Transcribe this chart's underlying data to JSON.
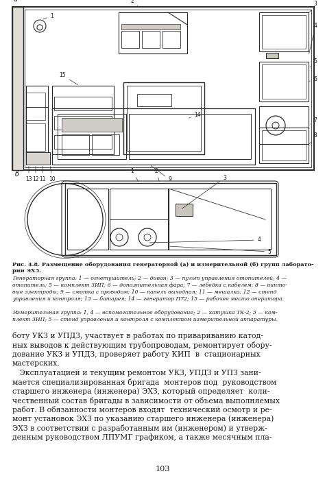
{
  "bg_color": "#ffffff",
  "page_color": "#f0ece4",
  "title_caption_bold": "Рис. 4.8. Размещение оборудования генераторной (а) и измерительной (б) групп лаборато-",
  "title_caption_bold2": "рии ЭХЗ.",
  "caption_gen": "Генераторная группа: 1 — огнетушитель; 2 — диван; 3 — пульт управления отопителей; 4 —\nотопитель; 5 — комплект ЗИП; 6 — дополнительная фара; 7 — лебедка с кабелем; 8 — винто-\nвые электроды; 9 — смотка с проводом; 10 — панель выходная; 11 — мешалка; 12 — стенд\nуправления и контроля; 13 — батарея; 14 — генератор П72; 15 — рабочее место оператора.",
  "caption_meas": "Измерительная группа: 1, 4 — вспомогательное оборудование; 2 — катушка ТК-2; 3 — ком-\nплект ЗИП; 5 — стенд управления и контроля с комплектом измерительной аппаратуры.",
  "body_text_1": "боту УКЗ и УПДЗ, участвует в работах по привариванию катод-\nных выводов к действующим трубопроводам, ремонтирует обору-\nдование УКЗ и УПДЗ, проверяет работу КИП  в  стационарных\nмастерских.",
  "body_text_2": "   Эксплуатацией и текущим ремонтом УКЗ, УПДЗ и УПЗ зани-\nмается специализированная бригада  монтеров под  руководством\nстаршего инженера (инженера) ЭХЗ, который определяет  коли-\nчественный состав бригады в зависимости от объема выполняемых\nработ. В обязанности монтеров входят  технический осмотр и ре-\nмонт установок ЭХЗ по указанию старшего инженера (инженера)\nЭХЗ в соответствии с разработанным им (инженером) и утверж-\nденным руководством ЛПУМГ графиком, а также месячным пла-",
  "page_number": "103",
  "label_a": "а",
  "label_b": "б"
}
